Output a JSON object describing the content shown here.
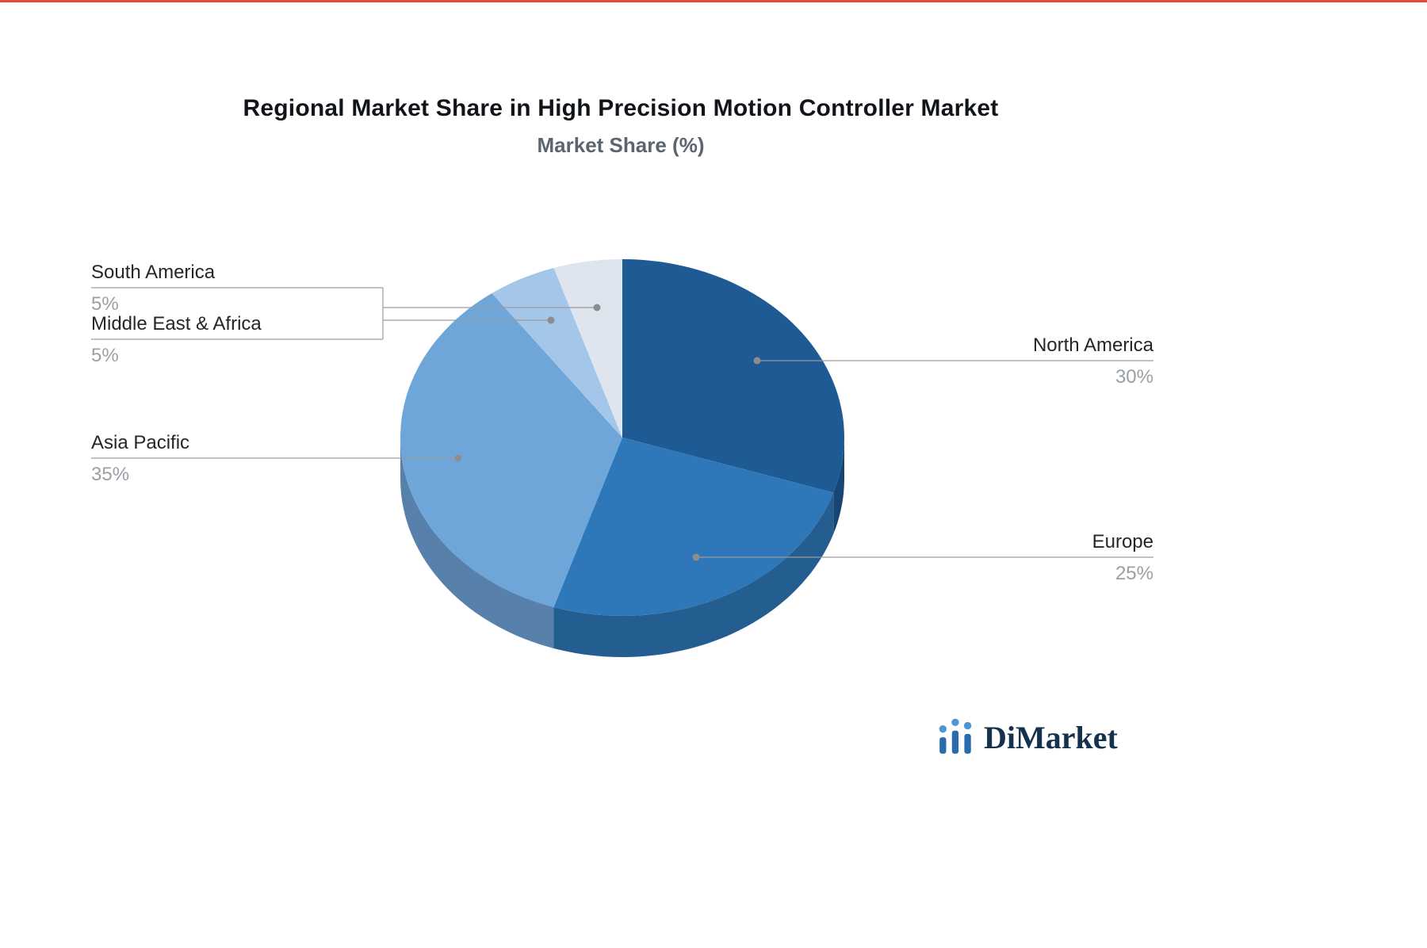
{
  "chart_data": {
    "type": "pie",
    "style": "3d",
    "title": "Regional Market Share in High Precision Motion Controller Market",
    "subtitle": "Market Share (%)",
    "unit": "%",
    "start_angle_deg": 0,
    "direction": "clockwise",
    "legend_position": "callout-labels",
    "slices": [
      {
        "label": "North America",
        "value": 30,
        "value_label": "30%",
        "color": "#1e5a94"
      },
      {
        "label": "Europe",
        "value": 25,
        "value_label": "25%",
        "color": "#2e77b9"
      },
      {
        "label": "Asia Pacific",
        "value": 35,
        "value_label": "35%",
        "color": "#6fa6da"
      },
      {
        "label": "Middle East & Africa",
        "value": 5,
        "value_label": "5%",
        "color": "#a4c6e8"
      },
      {
        "label": "South America",
        "value": 5,
        "value_label": "5%",
        "color": "#dfe5ee"
      }
    ],
    "callout_line_color": "#9b9b9b",
    "callout_dot_color": "#8d8d8d"
  },
  "logo": {
    "text": "DiMarket",
    "icon": "bar-chart-icon",
    "brand_color": "#2a6bb0"
  }
}
